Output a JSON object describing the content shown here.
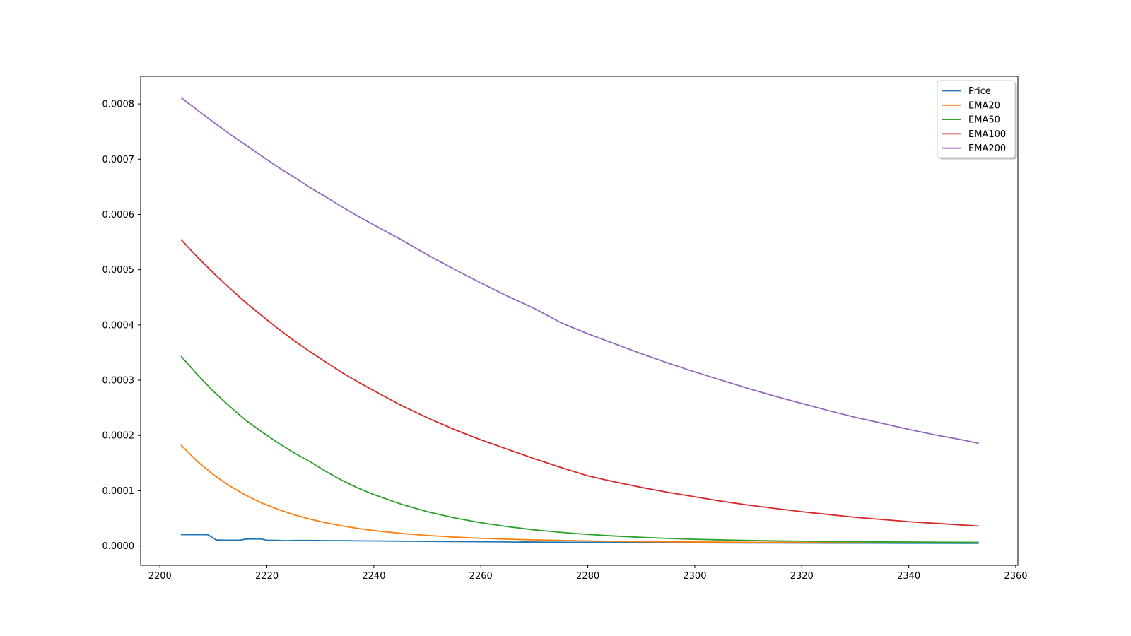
{
  "chart_data": {
    "type": "line",
    "title": "",
    "xlabel": "",
    "ylabel": "",
    "grid": false,
    "background": "#ffffff",
    "axis_color": "#000000",
    "xlim": [
      2196.4,
      2360.4
    ],
    "ylim": [
      -3.5e-05,
      0.00085
    ],
    "x_ticks": [
      2200,
      2220,
      2240,
      2260,
      2280,
      2300,
      2320,
      2340,
      2360
    ],
    "x_tick_labels": [
      "2200",
      "2220",
      "2240",
      "2260",
      "2280",
      "2300",
      "2320",
      "2340",
      "2360"
    ],
    "y_ticks": [
      0.0,
      0.0001,
      0.0002,
      0.0003,
      0.0004,
      0.0005,
      0.0006,
      0.0007,
      0.0008
    ],
    "y_tick_labels": [
      "0.0000",
      "0.0001",
      "0.0002",
      "0.0003",
      "0.0004",
      "0.0005",
      "0.0006",
      "0.0007",
      "0.0008"
    ],
    "legend": {
      "position": "upper right",
      "entries": [
        {
          "label": "Price",
          "color": "#1f77b4"
        },
        {
          "label": "EMA20",
          "color": "#ff7f0e"
        },
        {
          "label": "EMA50",
          "color": "#2ca02c"
        },
        {
          "label": "EMA100",
          "color": "#d62728"
        },
        {
          "label": "EMA200",
          "color": "#9467bd"
        }
      ]
    },
    "series": [
      {
        "name": "Price",
        "color": "#1f77b4",
        "x": [
          2204,
          2208,
          2209,
          2210.5,
          2212,
          2215,
          2216,
          2217,
          2219,
          2220,
          2222,
          2223.5,
          2225,
          2228,
          2231,
          2235,
          2240,
          2245,
          2250,
          2255,
          2260,
          2265,
          2266.5,
          2268,
          2269.5,
          2272,
          2275,
          2280,
          2285,
          2290,
          2295,
          2300,
          2305,
          2310,
          2315,
          2320,
          2325,
          2330,
          2335,
          2340,
          2345,
          2350,
          2353
        ],
        "y": [
          2.05e-05,
          2.05e-05,
          2.03e-05,
          1.1e-05,
          1.06e-05,
          1.06e-05,
          1.24e-05,
          1.28e-05,
          1.26e-05,
          1.04e-05,
          1.02e-05,
          9.6e-06,
          1.01e-05,
          1e-05,
          9.8e-06,
          9.5e-06,
          9.1e-06,
          8.7e-06,
          8.3e-06,
          8e-06,
          7.7e-06,
          7.4e-06,
          6.9e-06,
          7.3e-06,
          7.1e-06,
          6.9e-06,
          6.8e-06,
          6.5e-06,
          6.3e-06,
          6.1e-06,
          5.9e-06,
          5.8e-06,
          5.6e-06,
          5.5e-06,
          5.4e-06,
          5.3e-06,
          5.2e-06,
          5.1e-06,
          5.1e-06,
          5e-06,
          5e-06,
          4.9e-06,
          4.9e-06
        ]
      },
      {
        "name": "EMA20",
        "color": "#ff7f0e",
        "x": [
          2204,
          2207,
          2210,
          2213,
          2216,
          2219,
          2222,
          2225,
          2228,
          2231,
          2234,
          2237,
          2240,
          2245,
          2250,
          2255,
          2260,
          2265,
          2270,
          2275,
          2280,
          2285,
          2290,
          2295,
          2300,
          2305,
          2310,
          2315,
          2320,
          2325,
          2330,
          2335,
          2340,
          2345,
          2350,
          2353
        ],
        "y": [
          0.000182,
          0.000153,
          0.000129,
          0.000109,
          9.2e-05,
          7.8e-05,
          6.65e-05,
          5.68e-05,
          4.88e-05,
          4.21e-05,
          3.65e-05,
          3.18e-05,
          2.79e-05,
          2.28e-05,
          1.9e-05,
          1.61e-05,
          1.39e-05,
          1.23e-05,
          1.1e-05,
          1e-05,
          9.1e-06,
          8.5e-06,
          8e-06,
          7.6e-06,
          7.3e-06,
          7e-06,
          6.7e-06,
          6.6e-06,
          6.4e-06,
          6.3e-06,
          6.1e-06,
          6e-06,
          5.9e-06,
          5.9e-06,
          5.8e-06,
          5.7e-06
        ]
      },
      {
        "name": "EMA50",
        "color": "#2ca02c",
        "x": [
          2204,
          2207,
          2210,
          2213,
          2216,
          2219,
          2222,
          2225,
          2228,
          2231,
          2234,
          2237,
          2240,
          2245,
          2250,
          2255,
          2260,
          2265,
          2270,
          2275,
          2280,
          2285,
          2290,
          2295,
          2300,
          2305,
          2310,
          2315,
          2320,
          2325,
          2330,
          2335,
          2340,
          2345,
          2350,
          2353
        ],
        "y": [
          0.000343,
          0.00031,
          0.00028,
          0.000253,
          0.000228,
          0.000207,
          0.000187,
          0.000169,
          0.000153,
          0.000135,
          0.000119,
          0.000105,
          9.3e-05,
          7.6e-05,
          6.2e-05,
          5.1e-05,
          4.2e-05,
          3.5e-05,
          2.92e-05,
          2.46e-05,
          2.1e-05,
          1.8e-05,
          1.56e-05,
          1.38e-05,
          1.22e-05,
          1.1e-05,
          1e-05,
          9.2e-06,
          8.6e-06,
          8.1e-06,
          7.7e-06,
          7.3e-06,
          7.1e-06,
          6.9e-06,
          6.7e-06,
          6.6e-06
        ]
      },
      {
        "name": "EMA100",
        "color": "#d62728",
        "x": [
          2204,
          2207,
          2210,
          2213,
          2216,
          2219,
          2222,
          2225,
          2228,
          2231,
          2234,
          2237,
          2240,
          2245,
          2250,
          2255,
          2260,
          2265,
          2270,
          2275,
          2280,
          2285,
          2290,
          2295,
          2300,
          2305,
          2310,
          2315,
          2320,
          2325,
          2330,
          2335,
          2340,
          2345,
          2350,
          2353
        ],
        "y": [
          0.000554,
          0.000523,
          0.000494,
          0.000467,
          0.000441,
          0.000417,
          0.000394,
          0.000372,
          0.000352,
          0.000333,
          0.000314,
          0.000297,
          0.000281,
          0.000255,
          0.000232,
          0.000211,
          0.000192,
          0.000175,
          0.000158,
          0.000142,
          0.000127,
          0.000116,
          0.000106,
          9.7e-05,
          8.9e-05,
          8.1e-05,
          7.4e-05,
          6.8e-05,
          6.2e-05,
          5.7e-05,
          5.2e-05,
          4.8e-05,
          4.4e-05,
          4.1e-05,
          3.8e-05,
          3.6e-05
        ]
      },
      {
        "name": "EMA200",
        "color": "#9467bd",
        "x": [
          2204,
          2207,
          2210,
          2213,
          2216,
          2219,
          2222,
          2225,
          2228,
          2231,
          2234,
          2237,
          2240,
          2245,
          2250,
          2255,
          2260,
          2265,
          2270,
          2275,
          2280,
          2285,
          2290,
          2295,
          2300,
          2305,
          2310,
          2315,
          2320,
          2325,
          2330,
          2335,
          2340,
          2345,
          2350,
          2353
        ],
        "y": [
          0.000811,
          0.000789,
          0.000767,
          0.000746,
          0.000726,
          0.000706,
          0.000686,
          0.000668,
          0.000649,
          0.000632,
          0.000614,
          0.000597,
          0.000581,
          0.000555,
          0.000527,
          0.000501,
          0.000476,
          0.000452,
          0.00043,
          0.000404,
          0.000384,
          0.000366,
          0.000348,
          0.000331,
          0.000315,
          0.0003,
          0.000285,
          0.000271,
          0.000258,
          0.000245,
          0.000233,
          0.000222,
          0.000211,
          0.000201,
          0.000192,
          0.000186
        ]
      }
    ]
  }
}
